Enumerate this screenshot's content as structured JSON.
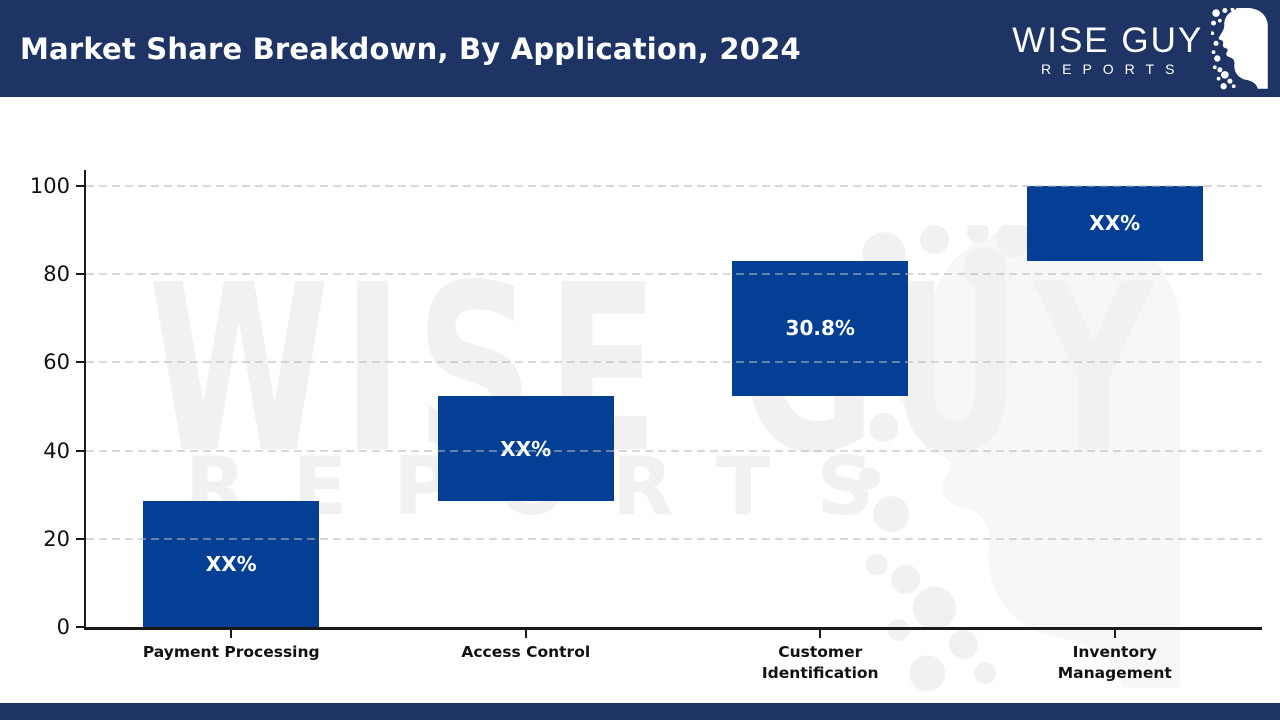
{
  "header": {
    "title": "Market Share Breakdown, By Application, 2024",
    "logo": {
      "line1": "WISE GUY",
      "line2": "REPORTS"
    }
  },
  "watermark": {
    "line1": "WISE GUY",
    "line2": "REPORTS"
  },
  "chart_data": {
    "type": "bar",
    "subtype": "floating-waterfall",
    "title": "Market Share Breakdown, By Application, 2024",
    "categories": [
      "Payment Processing",
      "Access Control",
      "Customer Identification",
      "Inventory Management"
    ],
    "category_lines": [
      [
        "Payment Processing"
      ],
      [
        "Access Control"
      ],
      [
        "Customer",
        "Identification"
      ],
      [
        "Inventory",
        "Management"
      ]
    ],
    "segments": [
      {
        "category": "Payment Processing",
        "start": 0,
        "end": 28.5,
        "label": "XX%"
      },
      {
        "category": "Access Control",
        "start": 28.5,
        "end": 52.3,
        "label": "XX%"
      },
      {
        "category": "Customer Identification",
        "start": 52.3,
        "end": 83.1,
        "label": "30.8%"
      },
      {
        "category": "Inventory Management",
        "start": 83.1,
        "end": 100,
        "label": "XX%"
      }
    ],
    "ylim": [
      0,
      100
    ],
    "yticks": [
      0,
      20,
      40,
      60,
      80,
      100
    ],
    "grid": "horizontal-dashed",
    "legend": "none",
    "colors": {
      "bar": "#033f94",
      "bar_label": "#ffffff",
      "axis": "#1a1a1a",
      "gridline": "#d9d9d9",
      "header_bg": "#1e3464",
      "watermark": "#f1f1f1"
    }
  }
}
